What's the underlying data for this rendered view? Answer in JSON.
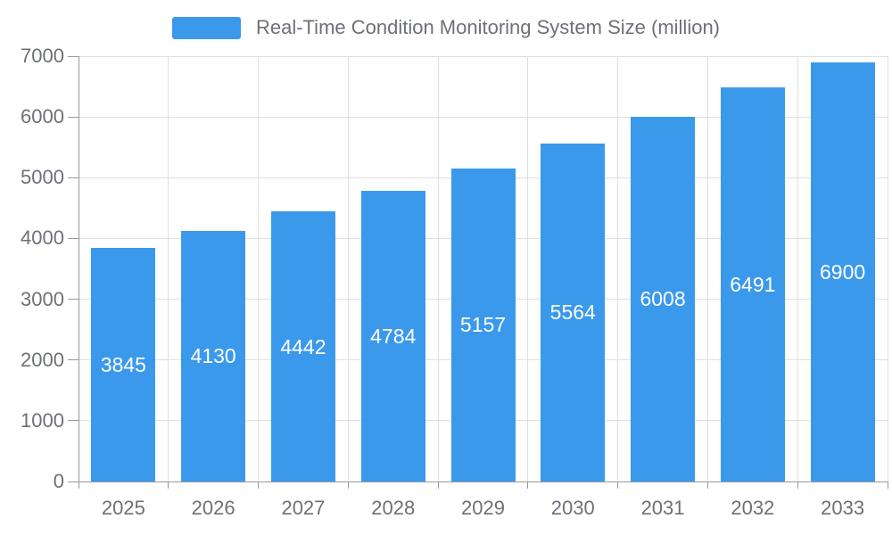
{
  "chart_data": {
    "type": "bar",
    "title": "Real-Time Condition Monitoring System Size (million)",
    "legend_entries": [
      "Real-Time Condition Monitoring System Size (million)"
    ],
    "legend_position": "top-center",
    "categories": [
      "2025",
      "2026",
      "2027",
      "2028",
      "2029",
      "2030",
      "2031",
      "2032",
      "2033"
    ],
    "series": [
      {
        "name": "Real-Time Condition Monitoring System Size (million)",
        "values": [
          3845,
          4130,
          4442,
          4784,
          5157,
          5564,
          6008,
          6491,
          6900
        ]
      }
    ],
    "bar_value_labels": [
      "3845",
      "4130",
      "4442",
      "4784",
      "5157",
      "5564",
      "6008",
      "6491",
      "6900"
    ],
    "xlabel": "",
    "ylabel": "",
    "ylim": [
      0,
      7000
    ],
    "y_ticks": [
      0,
      1000,
      2000,
      3000,
      4000,
      5000,
      6000,
      7000
    ],
    "grid": true,
    "colors": {
      "bar": "#3b99ec",
      "bar_label_text": "#ffffff",
      "axis": "#999999",
      "gridline": "#e0e0e0",
      "tick_text": "#6e7079",
      "legend_text": "#6e7079",
      "background": "#ffffff"
    }
  }
}
